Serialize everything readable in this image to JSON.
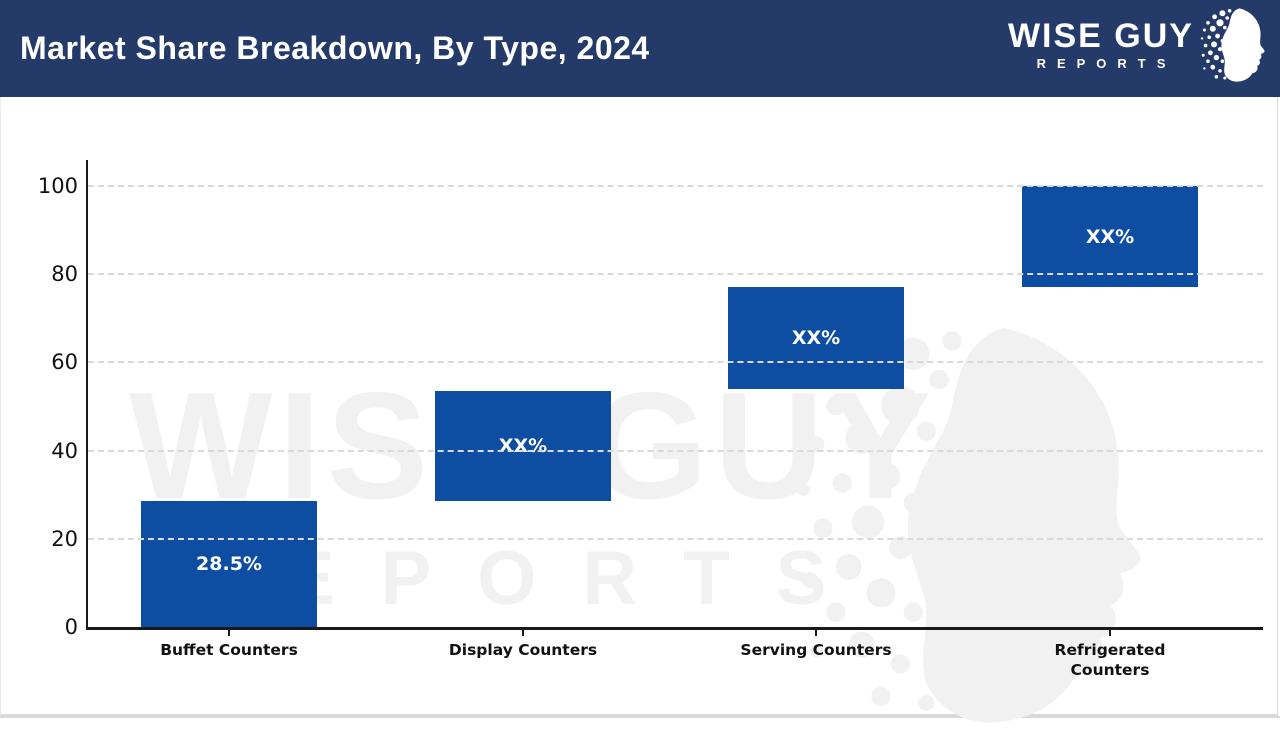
{
  "header": {
    "title": "Market Share Breakdown, By Type, 2024",
    "bg_color": "#243a69",
    "logo": {
      "line1": "WISE GUY",
      "line2": "REPORTS"
    }
  },
  "watermark": {
    "line1": "WISE GUY",
    "line2": "REPORTS"
  },
  "chart_data": {
    "type": "bar",
    "subtype": "waterfall",
    "title": "Market Share Breakdown, By Type, 2024",
    "xlabel": "",
    "ylabel": "",
    "categories": [
      "Buffet Counters",
      "Display Counters",
      "Serving Counters",
      "Refrigerated Counters"
    ],
    "bars": [
      {
        "category": "Buffet Counters",
        "start": 0,
        "end": 28.5,
        "label": "28.5%"
      },
      {
        "category": "Display Counters",
        "start": 28.5,
        "end": 53.5,
        "label": "XX%"
      },
      {
        "category": "Serving Counters",
        "start": 54,
        "end": 77,
        "label": "XX%"
      },
      {
        "category": "Refrigerated Counters",
        "start": 77,
        "end": 100,
        "label": "XX%"
      }
    ],
    "y_ticks": [
      0,
      20,
      40,
      60,
      80,
      100
    ],
    "ylim": [
      0,
      105
    ],
    "grid": "horizontal-dashed-over-bars",
    "legend": "none",
    "bar_color": "#0d4da2",
    "bar_label_color": "#ffffff",
    "grid_color": "#d9d9d9",
    "axis_color": "#1a1a1a"
  }
}
